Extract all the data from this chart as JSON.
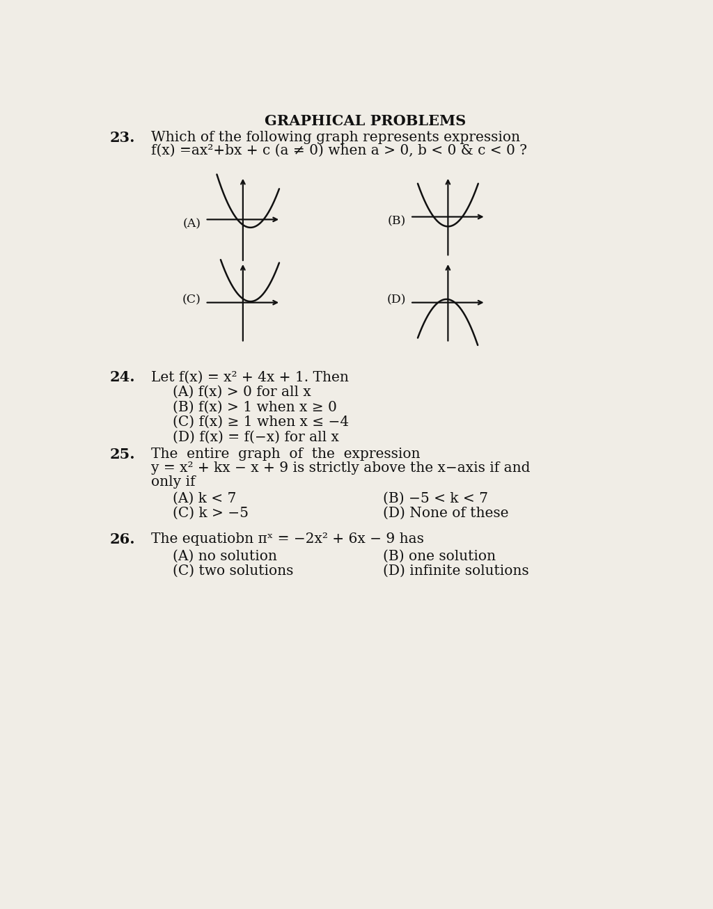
{
  "background_color": "#f0ede6",
  "title": "GRAPHICAL PROBLEMS",
  "title_fontsize": 15,
  "body_fontsize": 14.5,
  "small_fontsize": 12.5,
  "q23_number": "23.",
  "q23_text_line1": "Which of the following graph represents expression",
  "q23_text_line2": "f(x) =ax²+bx + c (a ≠ 0) when a > 0, b < 0 & c < 0 ?",
  "q23_A_label": "(A)",
  "q23_B_label": "(B)",
  "q23_C_label": "(C)",
  "q23_D_label": "(D)",
  "q24_number": "24.",
  "q24_text": "Let f(x) = x² + 4x + 1. Then",
  "q24_A": "(A) f(x) > 0 for all x",
  "q24_B": "(B) f(x) > 1 when x ≥ 0",
  "q24_C": "(C) f(x) ≥ 1 when x ≤ −4",
  "q24_D": "(D) f(x) = f(−x) for all x",
  "q25_number": "25.",
  "q25_text_line1": "The  entire  graph  of  the  expression",
  "q25_text_line2": "y = x² + kx − x + 9 is strictly above the x−axis if and",
  "q25_text_line3": "only if",
  "q25_A": "(A) k < 7",
  "q25_B": "(B) −5 < k < 7",
  "q25_C": "(C) k > −5",
  "q25_D": "(D) None of these",
  "q26_number": "26.",
  "q26_text_line1": "The equatiobn πˣ = −2x² + 6x − 9 has",
  "q26_A": "(A) no solution",
  "q26_B": "(B) one solution",
  "q26_C": "(C) two solutions",
  "q26_D": "(D) infinite solutions",
  "text_color": "#111111",
  "line_color": "#111111",
  "graph_A": {
    "a": 1,
    "b": -1.0,
    "c": -0.5,
    "xrange": [
      -1.8,
      2.4
    ],
    "xscale": 28,
    "yscale": 20,
    "xoff": 0,
    "yoff": 0
  },
  "graph_B": {
    "a": 1,
    "b": 0.0,
    "c": -0.9,
    "xrange": [
      -2.0,
      2.0
    ],
    "xscale": 28,
    "yscale": 20,
    "xoff": 0,
    "yoff": 0
  },
  "graph_C": {
    "a": 1,
    "b": -1.0,
    "c": 0.35,
    "xrange": [
      -1.8,
      2.4
    ],
    "xscale": 28,
    "yscale": 20,
    "xoff": 0,
    "yoff": 0
  },
  "graph_D": {
    "a": -1,
    "b": -0.2,
    "c": 0.3,
    "xrange": [
      -2.0,
      2.0
    ],
    "xscale": 28,
    "yscale": 20,
    "xoff": 0,
    "yoff": 0
  }
}
